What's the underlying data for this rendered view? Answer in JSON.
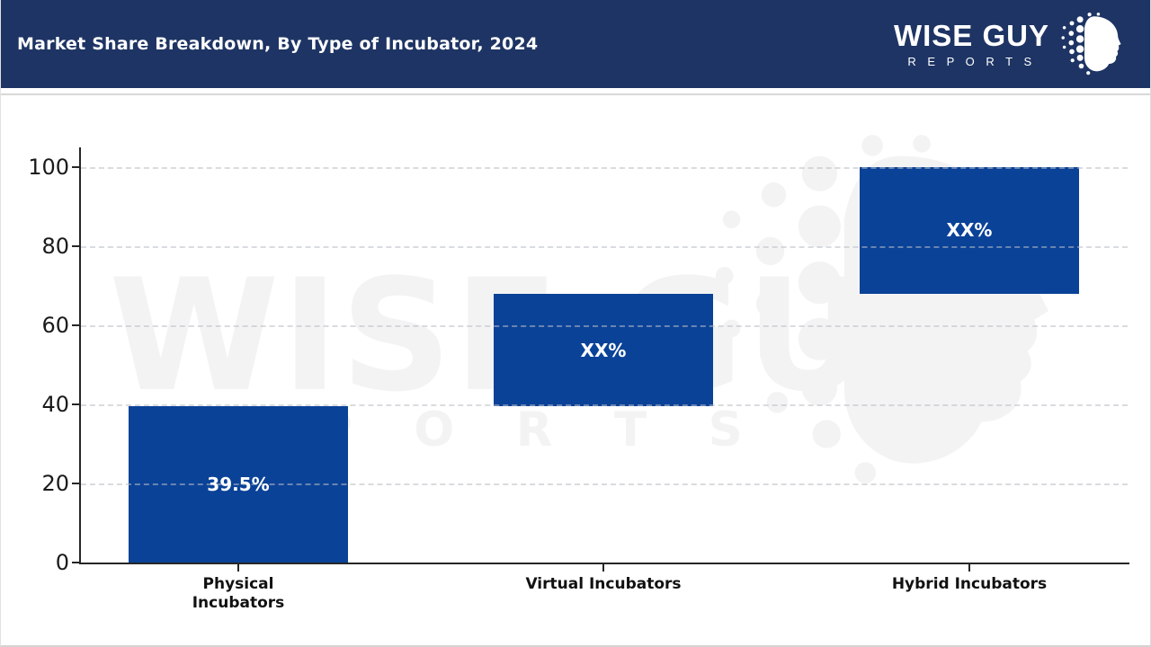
{
  "header": {
    "title": "Market Share Breakdown, By Type of Incubator, 2024",
    "logo": {
      "brand": "WISE GUY",
      "sub": "R E P O R T S"
    }
  },
  "watermark": {
    "brand": "WISE GUY",
    "sub": "R E P O R T S"
  },
  "colors": {
    "header_bg": "#1e3464",
    "bar": "#0a4298",
    "bar_label": "#ffffff",
    "axis": "#262626",
    "tick_label": "#1a1a1a",
    "watermark": "#f3f3f3"
  },
  "chart_data": {
    "type": "bar",
    "subtype": "waterfall-floating-bars",
    "title": "Market Share Breakdown, By Type of Incubator, 2024",
    "categories": [
      "Physical Incubators",
      "Virtual Incubators",
      "Hybrid Incubators"
    ],
    "category_lines": [
      [
        "Physical",
        "Incubators"
      ],
      [
        "Virtual Incubators"
      ],
      [
        "Hybrid Incubators"
      ]
    ],
    "bars": [
      {
        "category": "Physical Incubators",
        "start": 0,
        "end": 39.5,
        "label": "39.5%"
      },
      {
        "category": "Virtual Incubators",
        "start": 39.5,
        "end": 68,
        "label": "XX%"
      },
      {
        "category": "Hybrid Incubators",
        "start": 68,
        "end": 100,
        "label": "XX%"
      }
    ],
    "xlabel": "",
    "ylabel": "",
    "ylim": [
      0,
      100
    ],
    "yticks": [
      0,
      20,
      40,
      60,
      80,
      100
    ],
    "grid": "horizontal-dashed",
    "legend": false
  }
}
